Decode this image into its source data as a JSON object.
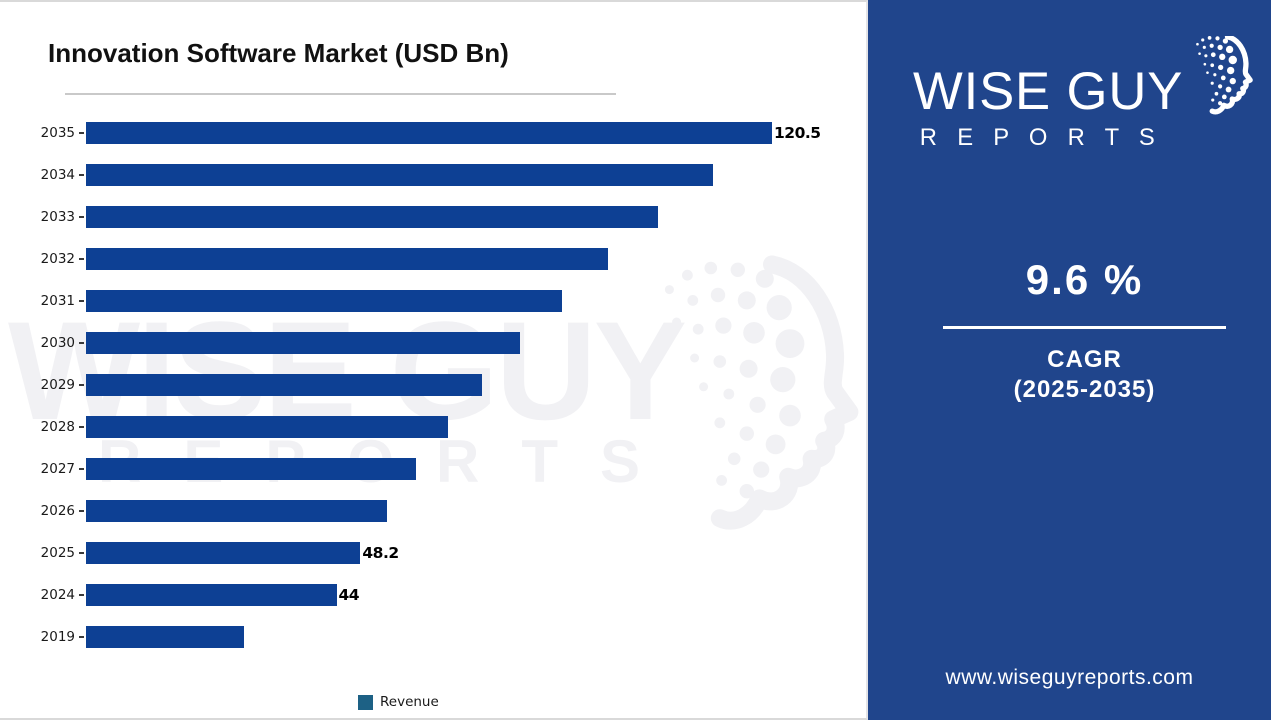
{
  "title": "Innovation Software Market (USD Bn)",
  "chart_data": {
    "type": "bar",
    "orientation": "horizontal",
    "title": "Innovation Software Market (USD Bn)",
    "categories": [
      "2035",
      "2034",
      "2033",
      "2032",
      "2031",
      "2030",
      "2029",
      "2028",
      "2027",
      "2026",
      "2025",
      "2024",
      "2019"
    ],
    "values": [
      120.5,
      110.1,
      100.4,
      91.6,
      83.6,
      76.3,
      69.6,
      63.5,
      57.9,
      52.8,
      48.2,
      44,
      27.8
    ],
    "series_name": "Revenue",
    "data_labels": {
      "2035": "120.5",
      "2025": "48.2",
      "2024": "44"
    },
    "xlim": [
      0,
      127
    ],
    "grid": false,
    "legend_entries": [
      "Revenue"
    ],
    "legend_position": "bottom-center",
    "bar_color": "#0d4094"
  },
  "legend": {
    "revenue_label": "Revenue"
  },
  "watermark": {
    "line1": "WISE GUY",
    "line2": "REPORTS"
  },
  "sidebar": {
    "logo_line1": "WISE GUY",
    "logo_line2": "R E P O R T S",
    "cagr_value": "9.6 %",
    "cagr_label_line1": "CAGR",
    "cagr_label_line2": "(2025-2035)",
    "website": "www.wiseguyreports.com"
  },
  "colors": {
    "bar": "#0d4094",
    "legend_marker": "#1d6185",
    "sidebar_background": "#20458c",
    "title_text": "#111111",
    "watermark": "#f1f1f4"
  }
}
